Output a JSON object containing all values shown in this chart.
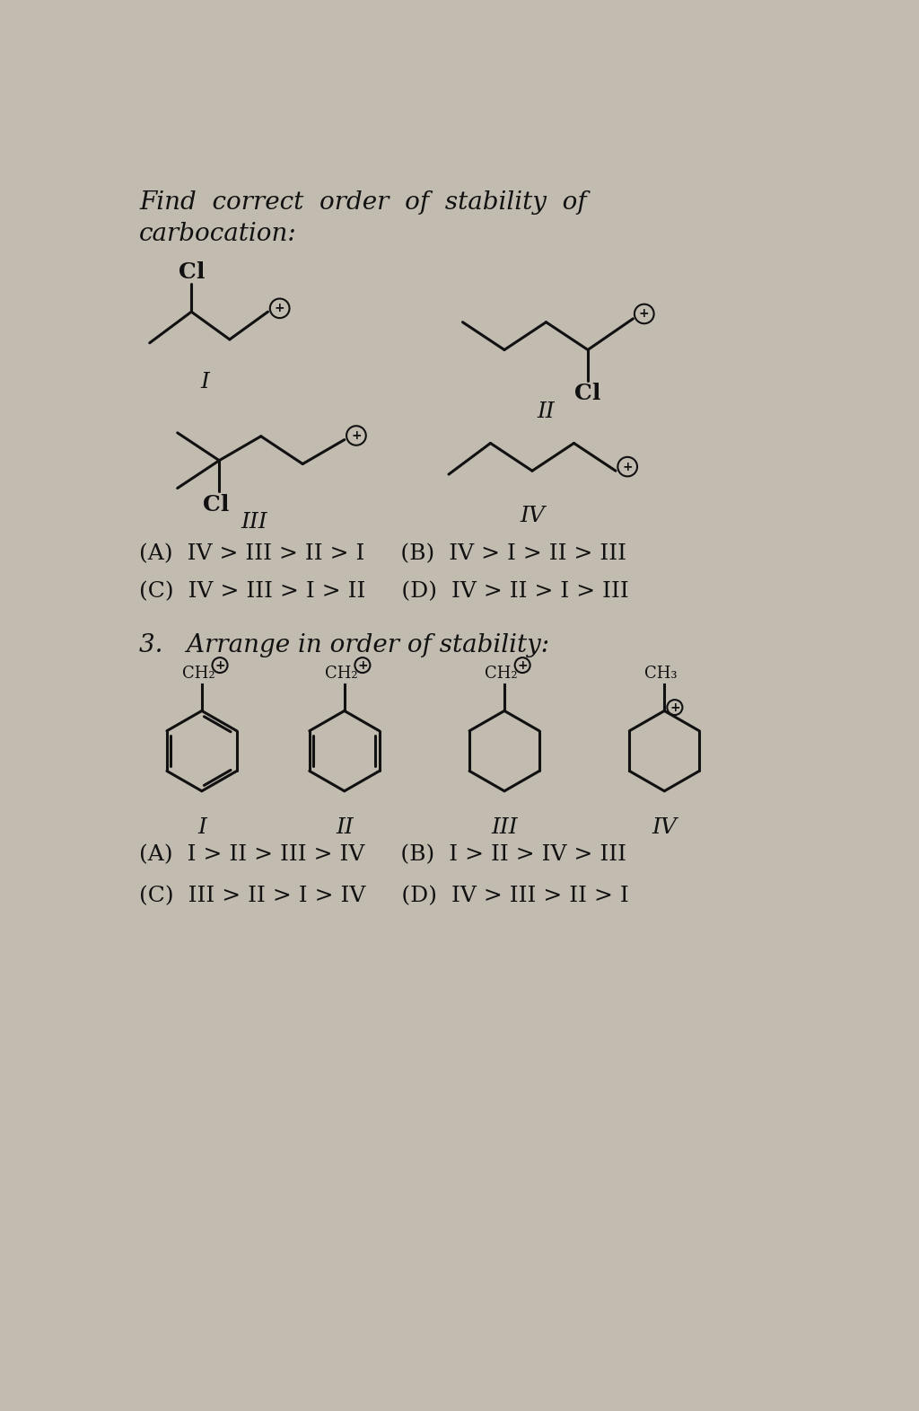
{
  "background_color": "#c2bbb0",
  "q1_title_line1": "Find  correct  order  of  stability  of",
  "q1_title_line2": "carbocation:",
  "q2_title": "3.   Arrange in order of stability:",
  "q1_options": [
    "(A)  IV > III > II > I     (B)  IV > I > II > III",
    "(C)  IV > III > I > II     (D)  IV > II > I > III"
  ],
  "q2_options": [
    "(A)  I > II > III > IV     (B)  I > II > IV > III",
    "(C)  III > II > I > IV     (D)  IV > III > II > I"
  ],
  "text_color": "#111111",
  "line_color": "#111111",
  "font_size_title": 20,
  "font_size_options": 18,
  "font_size_labels": 18,
  "font_size_cl": 16,
  "lw": 2.2
}
